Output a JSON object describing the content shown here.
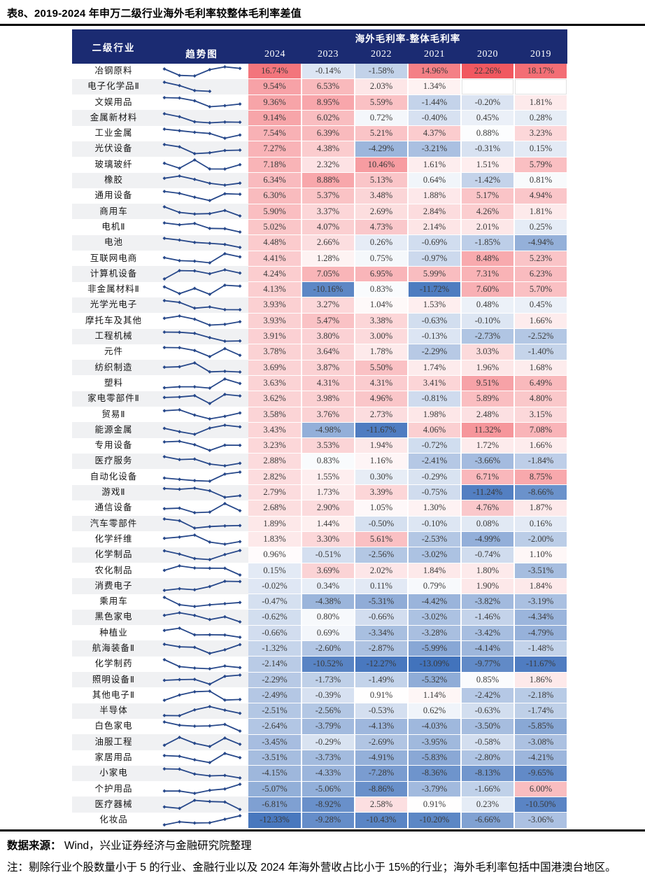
{
  "title": "表8、2019-2024 年申万二级行业海外毛利率较整体毛利率差值",
  "chart_data": {
    "type": "heatmap",
    "title": "表8、2019-2024 年申万二级行业海外毛利率较整体毛利率差值",
    "col_industry": "二级行业",
    "col_trend": "趋势图",
    "group_header": "海外毛利率-整体毛利率",
    "years": [
      "2024",
      "2023",
      "2022",
      "2021",
      "2020",
      "2019"
    ],
    "unit": "%",
    "legend_position": "none",
    "colorscale": {
      "min": -13.09,
      "mid": 0.9,
      "max": 22.26,
      "pos_color": "#F15860",
      "neg_color": "#4273BC",
      "exponent": 0.65
    },
    "header_bg": "#1B2B72",
    "spark_color": "#27488A",
    "rows": [
      {
        "name": "冶钢原料",
        "values": [
          16.74,
          -0.14,
          -1.58,
          14.96,
          22.26,
          18.17
        ]
      },
      {
        "name": "电子化学品Ⅱ",
        "values": [
          9.54,
          6.53,
          2.03,
          1.34,
          null,
          null
        ]
      },
      {
        "name": "文娱用品",
        "values": [
          9.36,
          8.95,
          5.59,
          -1.44,
          -0.2,
          1.81
        ]
      },
      {
        "name": "金属新材料",
        "values": [
          9.14,
          6.02,
          0.72,
          -0.4,
          0.45,
          0.28
        ]
      },
      {
        "name": "工业金属",
        "values": [
          7.54,
          6.39,
          5.21,
          4.37,
          0.88,
          3.23
        ]
      },
      {
        "name": "光伏设备",
        "values": [
          7.27,
          4.38,
          -4.29,
          -3.21,
          -0.31,
          0.15
        ]
      },
      {
        "name": "玻璃玻纤",
        "values": [
          7.18,
          2.32,
          10.46,
          1.61,
          1.51,
          5.79
        ]
      },
      {
        "name": "橡胶",
        "values": [
          6.34,
          8.88,
          5.13,
          0.64,
          -1.42,
          0.81
        ]
      },
      {
        "name": "通用设备",
        "values": [
          6.3,
          5.37,
          3.48,
          1.88,
          5.17,
          4.94
        ]
      },
      {
        "name": "商用车",
        "values": [
          5.9,
          3.37,
          2.69,
          2.84,
          4.26,
          1.81
        ]
      },
      {
        "name": "电机Ⅱ",
        "values": [
          5.02,
          4.07,
          4.73,
          2.14,
          2.01,
          0.25
        ]
      },
      {
        "name": "电池",
        "values": [
          4.48,
          2.66,
          0.26,
          -0.69,
          -1.85,
          -4.94
        ]
      },
      {
        "name": "互联网电商",
        "values": [
          4.41,
          1.28,
          0.75,
          -0.97,
          8.48,
          5.23
        ]
      },
      {
        "name": "计算机设备",
        "values": [
          4.24,
          7.05,
          6.95,
          5.99,
          7.31,
          6.23
        ]
      },
      {
        "name": "非金属材料Ⅱ",
        "values": [
          4.13,
          -10.16,
          0.83,
          -11.72,
          7.6,
          5.7
        ]
      },
      {
        "name": "光学光电子",
        "values": [
          3.93,
          3.27,
          1.04,
          1.53,
          0.48,
          0.45
        ]
      },
      {
        "name": "摩托车及其他",
        "values": [
          3.93,
          5.47,
          3.38,
          -0.63,
          -0.1,
          1.66
        ]
      },
      {
        "name": "工程机械",
        "values": [
          3.91,
          3.8,
          3.0,
          -0.13,
          -2.73,
          -2.52
        ]
      },
      {
        "name": "元件",
        "values": [
          3.78,
          3.64,
          1.78,
          -2.29,
          3.03,
          -1.4
        ]
      },
      {
        "name": "纺织制造",
        "values": [
          3.69,
          3.87,
          5.5,
          1.74,
          1.96,
          1.68
        ]
      },
      {
        "name": "塑料",
        "values": [
          3.63,
          4.31,
          4.31,
          3.41,
          9.51,
          6.49
        ]
      },
      {
        "name": "家电零部件Ⅱ",
        "values": [
          3.62,
          3.98,
          4.96,
          -0.81,
          5.89,
          4.8
        ]
      },
      {
        "name": "贸易Ⅱ",
        "values": [
          3.58,
          3.76,
          2.73,
          1.98,
          2.48,
          3.15
        ]
      },
      {
        "name": "能源金属",
        "values": [
          3.43,
          -4.98,
          -11.67,
          4.06,
          11.32,
          7.08
        ]
      },
      {
        "name": "专用设备",
        "values": [
          3.23,
          3.53,
          1.94,
          -0.72,
          1.72,
          1.66
        ]
      },
      {
        "name": "医疗服务",
        "values": [
          2.88,
          0.83,
          1.16,
          -2.41,
          -3.66,
          -1.84
        ]
      },
      {
        "name": "自动化设备",
        "values": [
          2.82,
          1.55,
          0.3,
          -0.29,
          6.71,
          8.75
        ]
      },
      {
        "name": "游戏Ⅱ",
        "values": [
          2.79,
          1.73,
          3.39,
          -0.75,
          -11.24,
          -8.66
        ]
      },
      {
        "name": "通信设备",
        "values": [
          2.68,
          2.9,
          1.05,
          1.3,
          4.76,
          1.87
        ]
      },
      {
        "name": "汽车零部件",
        "values": [
          1.89,
          1.44,
          -0.5,
          -0.1,
          0.08,
          0.16
        ]
      },
      {
        "name": "化学纤维",
        "values": [
          1.83,
          3.3,
          5.61,
          -2.53,
          -4.99,
          -2.0
        ]
      },
      {
        "name": "化学制品",
        "values": [
          0.96,
          -0.51,
          -2.56,
          -3.02,
          -0.74,
          1.1
        ]
      },
      {
        "name": "农化制品",
        "values": [
          0.15,
          3.69,
          2.02,
          1.84,
          1.8,
          -3.51
        ]
      },
      {
        "name": "消费电子",
        "values": [
          -0.02,
          0.34,
          0.11,
          0.79,
          1.9,
          1.84
        ]
      },
      {
        "name": "乘用车",
        "values": [
          -0.47,
          -4.38,
          -5.31,
          -4.42,
          -3.82,
          -3.19
        ]
      },
      {
        "name": "黑色家电",
        "values": [
          -0.62,
          0.8,
          -0.66,
          -3.02,
          -1.46,
          -4.34
        ]
      },
      {
        "name": "种植业",
        "values": [
          -0.66,
          0.69,
          -3.34,
          -3.28,
          -3.42,
          -4.79
        ]
      },
      {
        "name": "航海装备Ⅱ",
        "values": [
          -1.32,
          -2.6,
          -2.87,
          -5.99,
          -4.14,
          -1.48
        ]
      },
      {
        "name": "化学制药",
        "values": [
          -2.14,
          -10.52,
          -12.27,
          -13.09,
          -9.77,
          -11.67
        ]
      },
      {
        "name": "照明设备Ⅱ",
        "values": [
          -2.29,
          -1.73,
          -1.49,
          -5.32,
          0.85,
          1.86
        ]
      },
      {
        "name": "其他电子Ⅱ",
        "values": [
          -2.49,
          -0.39,
          0.91,
          1.14,
          -2.42,
          -2.18
        ]
      },
      {
        "name": "半导体",
        "values": [
          -2.51,
          -2.56,
          -0.53,
          0.62,
          -0.63,
          -1.74
        ]
      },
      {
        "name": "白色家电",
        "values": [
          -2.64,
          -3.79,
          -4.13,
          -4.03,
          -3.5,
          -5.85
        ]
      },
      {
        "name": "油服工程",
        "values": [
          -3.45,
          -0.29,
          -2.69,
          -3.95,
          -0.58,
          -3.08
        ]
      },
      {
        "name": "家居用品",
        "values": [
          -3.51,
          -3.73,
          -4.91,
          -5.83,
          -2.8,
          -4.21
        ]
      },
      {
        "name": "小家电",
        "values": [
          -4.15,
          -4.33,
          -7.28,
          -8.36,
          -8.13,
          -9.65
        ]
      },
      {
        "name": "个护用品",
        "values": [
          -5.07,
          -5.06,
          -8.86,
          -3.79,
          -1.66,
          6.0
        ]
      },
      {
        "name": "医疗器械",
        "values": [
          -6.81,
          -8.92,
          2.58,
          0.91,
          0.23,
          -10.5
        ]
      },
      {
        "name": "化妆品",
        "values": [
          -12.33,
          -9.28,
          -10.43,
          -10.2,
          -6.66,
          -3.06
        ]
      }
    ]
  },
  "footer": {
    "source_label": "数据来源：",
    "source_text": " Wind，兴业证券经济与金融研究院整理",
    "note": "注：剔除行业个股数量小于 5 的行业、金融行业以及 2024 年海外营收占比小于 15%的行业；海外毛利率包括中国港澳台地区。"
  }
}
